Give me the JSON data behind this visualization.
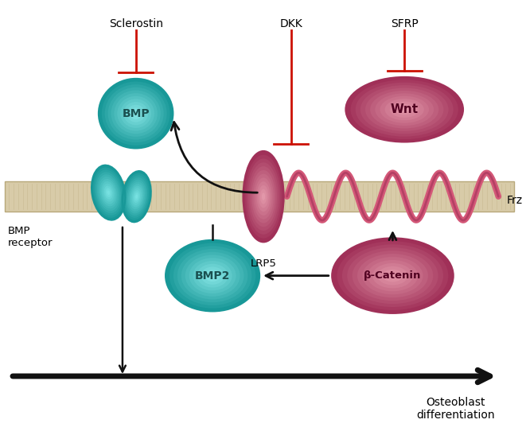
{
  "background_color": "#ffffff",
  "membrane_color": "#d8cba8",
  "membrane_edge_color": "#b8a87a",
  "cyan_color": "#45d0d0",
  "cyan_dark": "#189898",
  "cyan_light": "#80e8e8",
  "pink_color": "#d45878",
  "pink_dark": "#a03058",
  "pink_light": "#e8a0b0",
  "red_inhibit": "#cc1100",
  "arrow_color": "#111111",
  "labels": {
    "sclerostin": "Sclerostin",
    "DKK": "DKK",
    "SFRP": "SFRP",
    "BMP": "BMP",
    "BMP2": "BMP2",
    "BMP_receptor": "BMP\nreceptor",
    "LRP5": "LRP5",
    "Wnt": "Wnt",
    "Frz": "Frz",
    "beta_catenin": "β-Catenin",
    "osteoblast": "Osteoblast\ndifferentiation"
  }
}
